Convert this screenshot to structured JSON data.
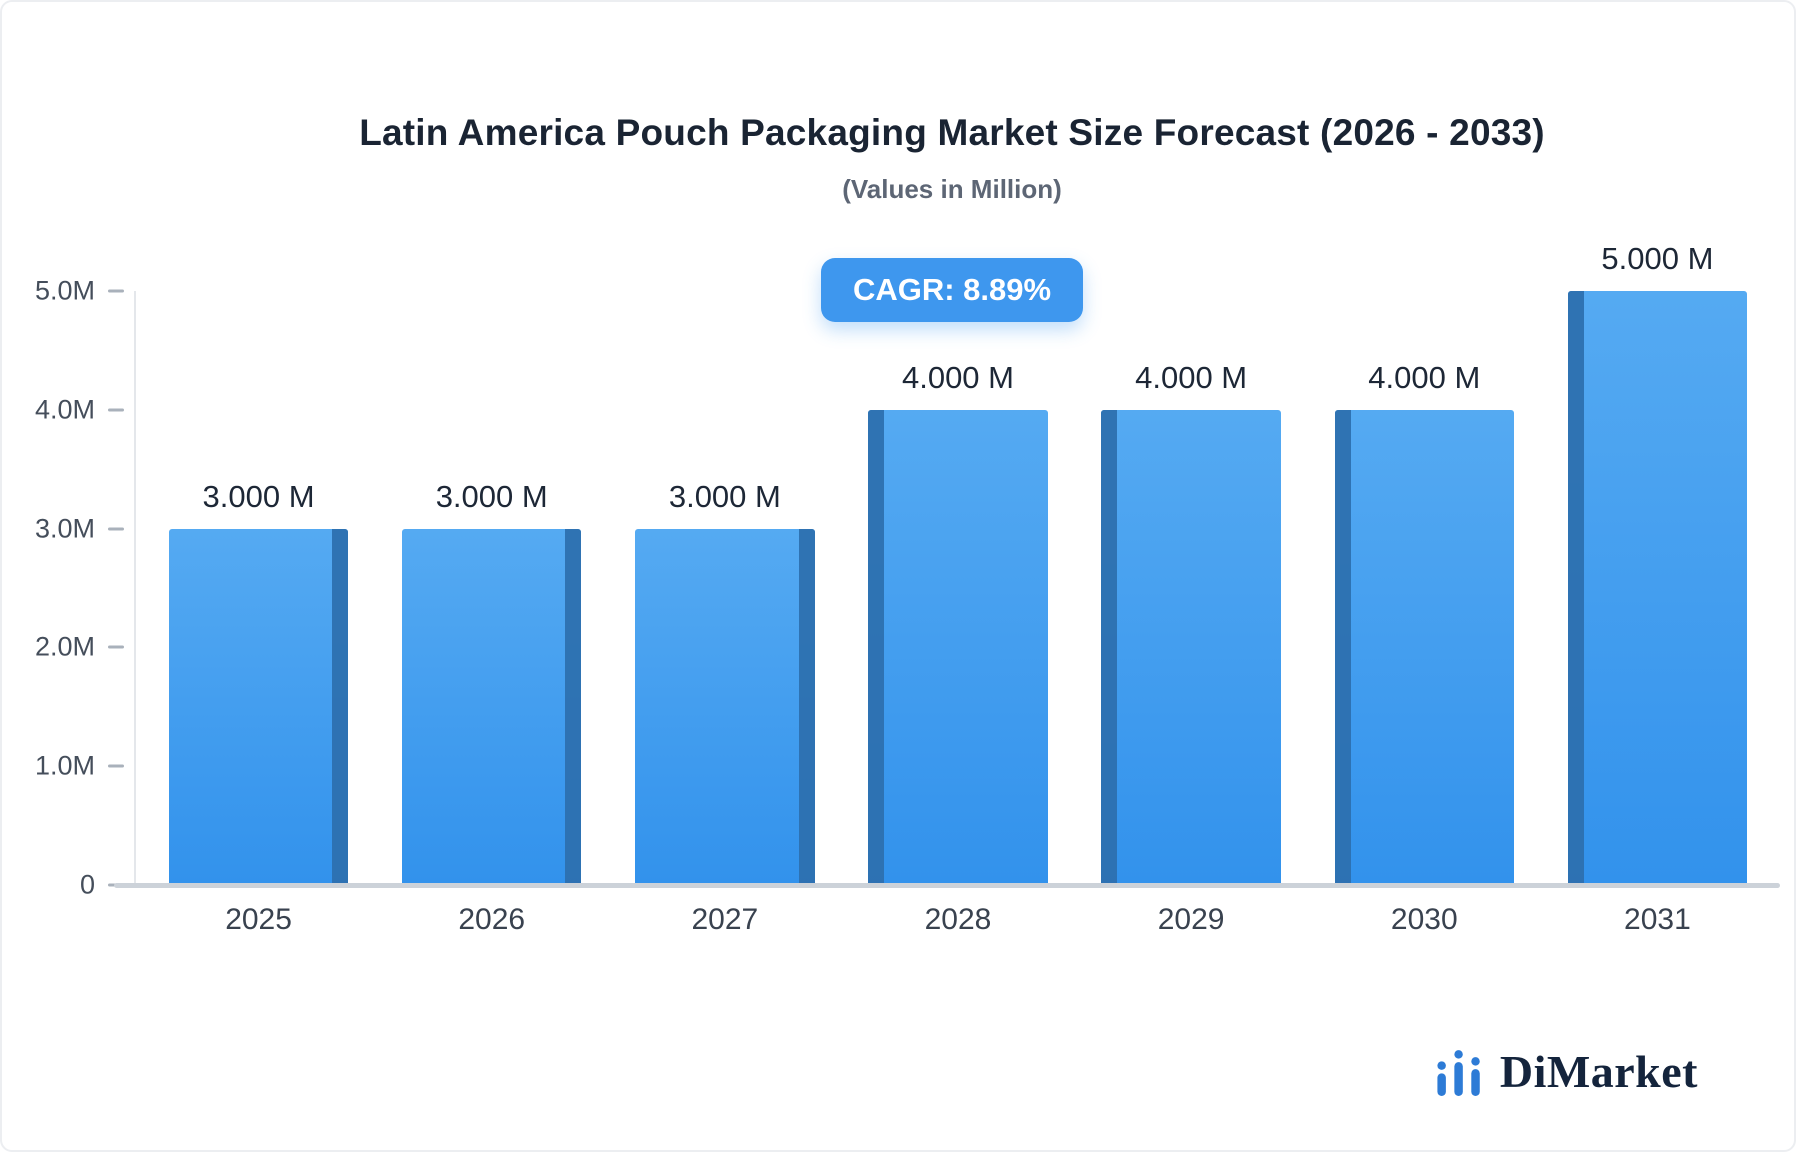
{
  "header": {
    "title": "Latin America Pouch Packaging Market Size Forecast (2026 - 2033)",
    "subtitle": "(Values in Million)"
  },
  "badge": {
    "label": "CAGR: 8.89%",
    "background": "#3E97EE",
    "text_color": "#ffffff"
  },
  "brand": {
    "name": "DiMarket",
    "icon": "bar-chart-logo-icon",
    "icon_color": "#2D7BD6",
    "text_color": "#14243c"
  },
  "chart_data": {
    "type": "bar",
    "title": "Latin America Pouch Packaging Market Size Forecast (2026 - 2033)",
    "subtitle": "(Values in Million)",
    "cagr_label": "CAGR: 8.89%",
    "categories": [
      "2025",
      "2026",
      "2027",
      "2028",
      "2029",
      "2030",
      "2031"
    ],
    "values": [
      3,
      3,
      3,
      4,
      4,
      4,
      5
    ],
    "value_labels": [
      "3.000 M",
      "3.000 M",
      "3.000 M",
      "4.000 M",
      "4.000 M",
      "4.000 M",
      "5.000 M"
    ],
    "unit": "Million",
    "ylim": [
      0,
      5
    ],
    "yticks": [
      {
        "value": 0,
        "label": "0"
      },
      {
        "value": 1,
        "label": "1.0M"
      },
      {
        "value": 2,
        "label": "2.0M"
      },
      {
        "value": 3,
        "label": "3.0M"
      },
      {
        "value": 4,
        "label": "4.0M"
      },
      {
        "value": 5,
        "label": "5.0M"
      }
    ],
    "grid": false,
    "legend": false,
    "bar_color_top": "#55AAF2",
    "bar_color_bottom": "#3292EC",
    "bar_edge_color": "#2D6FAE"
  }
}
